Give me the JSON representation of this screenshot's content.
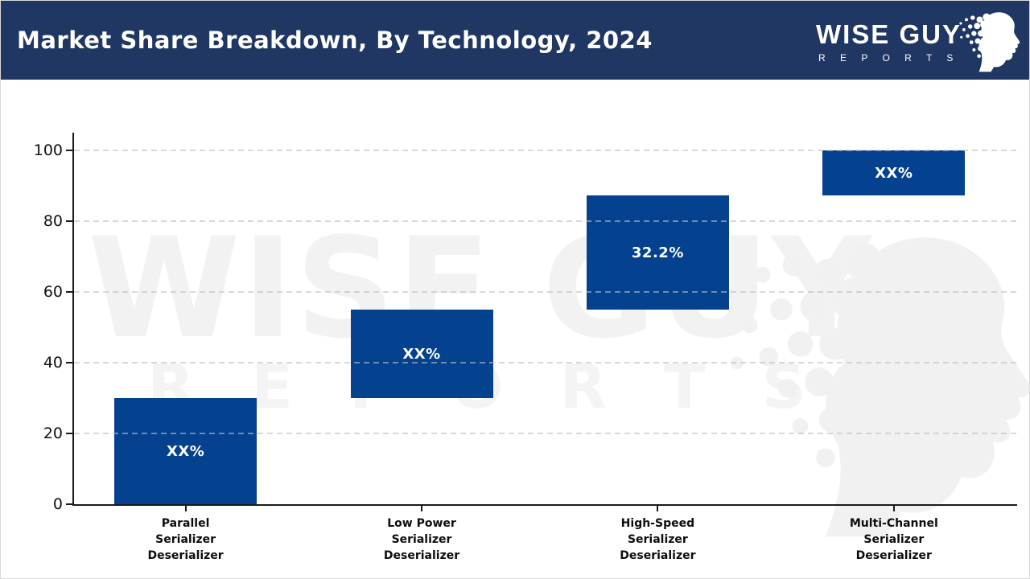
{
  "header": {
    "title": "Market Share Breakdown, By Technology, 2024",
    "background_color": "#203663",
    "logo": {
      "name": "WISE GUY",
      "sub": "R E P O R T S"
    }
  },
  "watermark": {
    "line1": "WISE GUY",
    "line2": "R E P O R T S"
  },
  "chart_data": {
    "type": "bar",
    "subtype": "floating-waterfall",
    "title": "Market Share Breakdown, By Technology, 2024",
    "categories": [
      [
        "Parallel",
        "Serializer",
        "Deserializer"
      ],
      [
        "Low Power",
        "Serializer",
        "Deserializer"
      ],
      [
        "High-Speed",
        "Serializer",
        "Deserializer"
      ],
      [
        "Multi-Channel",
        "Serializer",
        "Deserializer"
      ]
    ],
    "bars": [
      {
        "category": "Parallel Serializer Deserializer",
        "start": 0,
        "end": 30,
        "height": 30,
        "label": "XX%"
      },
      {
        "category": "Low Power Serializer Deserializer",
        "start": 30,
        "end": 55,
        "height": 25,
        "label": "XX%"
      },
      {
        "category": "High-Speed Serializer Deserializer",
        "start": 55,
        "end": 87.2,
        "height": 32.2,
        "label": "32.2%",
        "value": 32.2
      },
      {
        "category": "Multi-Channel Serializer Deserializer",
        "start": 87.2,
        "end": 100,
        "height": 12.8,
        "label": "XX%"
      }
    ],
    "ylim": [
      0,
      100
    ],
    "yticks": [
      0,
      20,
      40,
      60,
      80,
      100
    ],
    "grid": {
      "horizontal": true,
      "style": "dashed",
      "color": "#d9d9d9"
    },
    "bar_color": "#04418f",
    "bar_label_color": "#ffffff",
    "legend": null
  }
}
